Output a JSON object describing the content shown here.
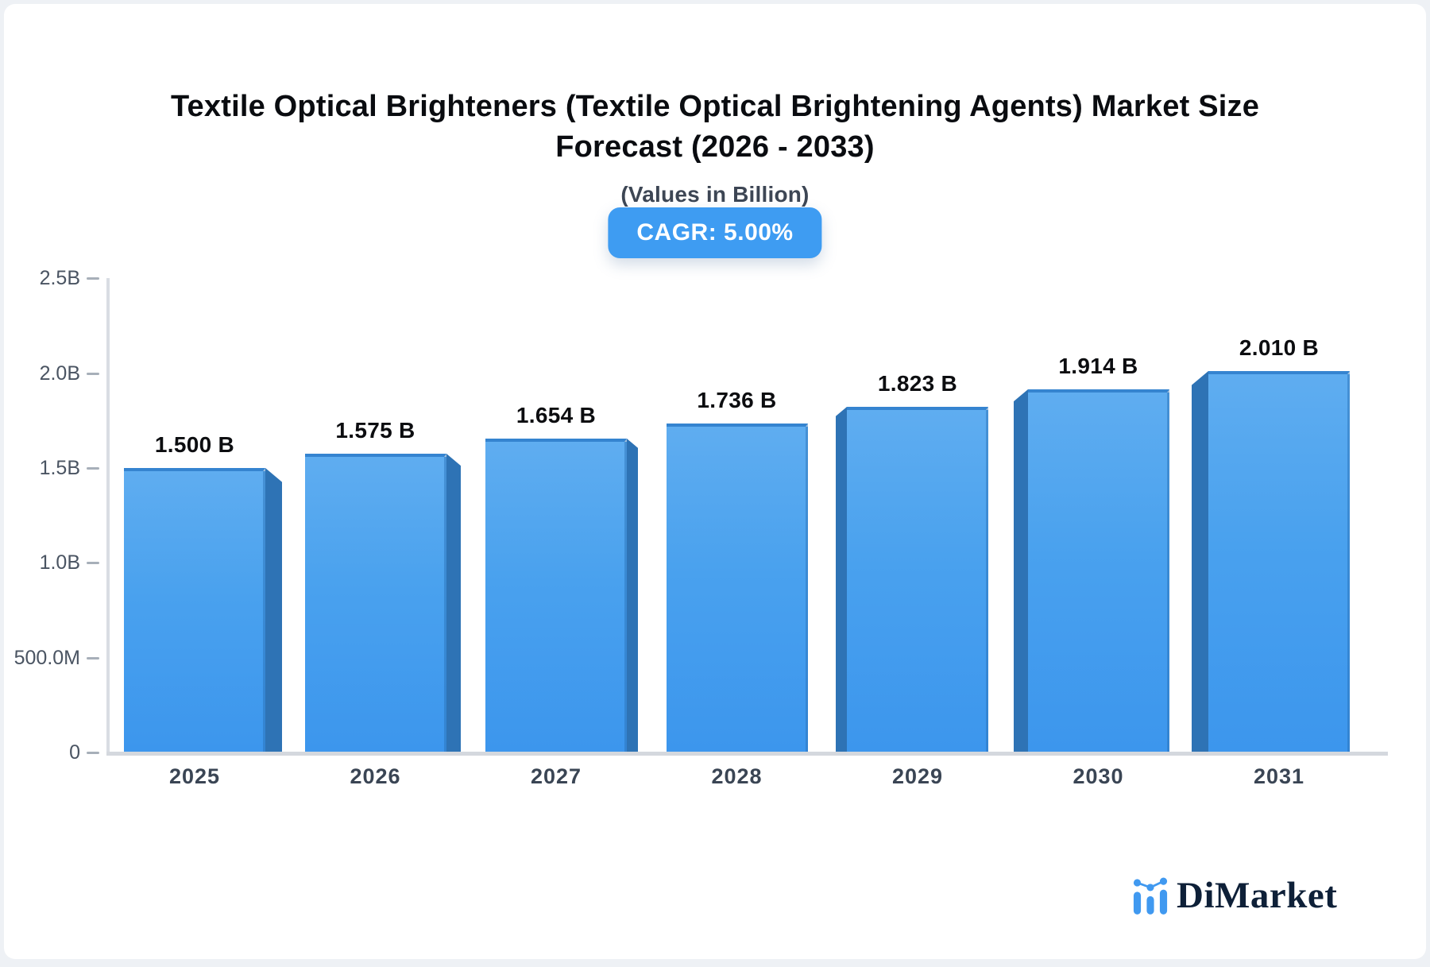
{
  "header": {
    "title_line1": "Textile Optical Brighteners (Textile Optical Brightening Agents) Market Size",
    "title_line2": "Forecast (2026 - 2033)",
    "subtitle": "(Values in Billion)",
    "cagr_label": "CAGR: 5.00%"
  },
  "brand": {
    "name": "DiMarket",
    "icon": "mini-bar-chart-icon"
  },
  "colors": {
    "accent_blue": "#3e9cf2",
    "bar_face_top": "#5fadf0",
    "bar_face_bottom": "#3c96ed",
    "bar_side": "#2e73b5",
    "bar_top_edge": "#3584d0",
    "axis_line": "#d9dde3",
    "tick_dash": "#a7afb9",
    "y_label_text": "#4a5462",
    "x_label_text": "#3a4554",
    "data_label_text": "#0c0d10",
    "title_text": "#0a0c10",
    "subtitle_text": "#3d4654",
    "brand_text": "#0e2038",
    "brand_icon": "#4099f0"
  },
  "chart_data": {
    "type": "bar",
    "title": "Textile Optical Brighteners (Textile Optical Brightening Agents) Market Size Forecast (2026 - 2033)",
    "subtitle": "(Values in Billion)",
    "cagr": "5.00%",
    "unit": "Billion",
    "categories": [
      "2025",
      "2026",
      "2027",
      "2028",
      "2029",
      "2030",
      "2031"
    ],
    "values": [
      1.5,
      1.575,
      1.654,
      1.736,
      1.823,
      1.914,
      2.01
    ],
    "data_labels": [
      "1.500 B",
      "1.575 B",
      "1.654 B",
      "1.736 B",
      "1.823 B",
      "1.914 B",
      "2.010 B"
    ],
    "ylim": [
      0,
      2.5
    ],
    "yticks": [
      {
        "label": "2.5B",
        "value": 2.5
      },
      {
        "label": "2.0B",
        "value": 2.0
      },
      {
        "label": "1.5B",
        "value": 1.5
      },
      {
        "label": "1.0B",
        "value": 1.0
      },
      {
        "label": "500.0M",
        "value": 0.5
      },
      {
        "label": "0",
        "value": 0
      }
    ],
    "grid": false,
    "legend": false,
    "bar_style": "3d-perspective"
  }
}
